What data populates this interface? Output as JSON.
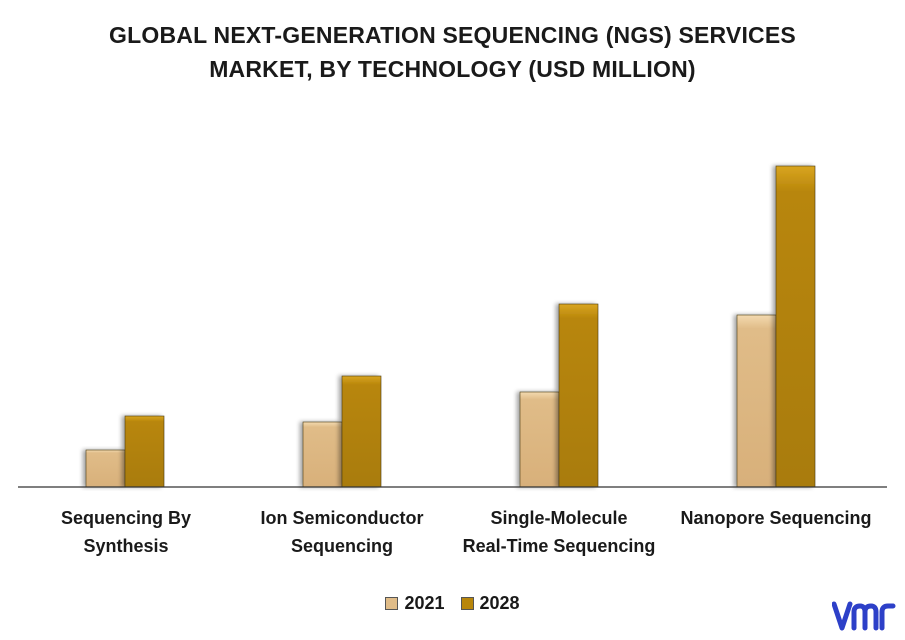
{
  "chart_data": {
    "type": "bar",
    "title_lines": [
      "GLOBAL NEXT-GENERATION SEQUENCING (NGS) SERVICES",
      "MARKET, BY TECHNOLOGY (USD MILLION)"
    ],
    "categories": [
      [
        "Sequencing By",
        "Synthesis"
      ],
      [
        "Ion Semiconductor",
        "Sequencing"
      ],
      [
        "Single-Molecule",
        "Real-Time Sequencing"
      ],
      [
        "Nanopore Sequencing"
      ]
    ],
    "series": [
      {
        "name": "2021",
        "values": [
          37,
          65,
          95,
          172
        ],
        "color": "#e0bc88"
      },
      {
        "name": "2028",
        "values": [
          71,
          111,
          183,
          321
        ],
        "color": "#b8860b"
      }
    ],
    "xlabel": "",
    "ylabel": "",
    "ylim": [
      0,
      350
    ],
    "grid": false,
    "legend_position": "bottom"
  },
  "brand": {
    "logo_text": "vmr",
    "logo_color": "#2d40c8"
  }
}
